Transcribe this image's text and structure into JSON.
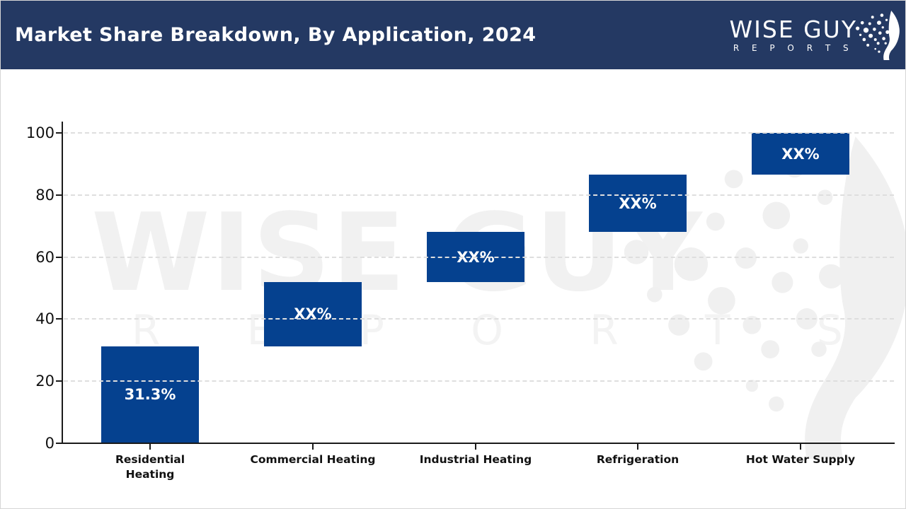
{
  "header": {
    "title": "Market Share Breakdown, By Application, 2024",
    "logo": {
      "line1": "WISE GUY",
      "line2": "R E P O R T S"
    }
  },
  "watermark": {
    "line1": "WISE GUY",
    "line2": "R E P O R T S"
  },
  "chart_data": {
    "type": "bar",
    "subtype": "waterfall",
    "title": "Market Share Breakdown, By Application, 2024",
    "categories": [
      "Residential\nHeating",
      "Commercial Heating",
      "Industrial Heating",
      "Refrigeration",
      "Hot Water Supply"
    ],
    "segments": [
      {
        "category": "Residential Heating",
        "start": 0,
        "end": 31.3,
        "label": "31.3%"
      },
      {
        "category": "Commercial Heating",
        "start": 31.3,
        "end": 52,
        "label": "XX%"
      },
      {
        "category": "Industrial Heating",
        "start": 52,
        "end": 68,
        "label": "XX%"
      },
      {
        "category": "Refrigeration",
        "start": 68,
        "end": 86.5,
        "label": "XX%"
      },
      {
        "category": "Hot Water Supply",
        "start": 86.5,
        "end": 100,
        "label": "XX%"
      }
    ],
    "y_ticks": [
      0,
      20,
      40,
      60,
      80,
      100
    ],
    "ylim": [
      0,
      100
    ],
    "xlabel": "",
    "ylabel": "",
    "grid": "horizontal-dashed",
    "legend": "none",
    "bar_color": "#05418f",
    "bar_label_color": "#ffffff"
  },
  "colors": {
    "header_bg": "#243963",
    "bar": "#05418f",
    "axis": "#1a1a1a",
    "gridline": "#dedede",
    "watermark": "#f1f1f1",
    "page_bg": "#ffffff"
  }
}
